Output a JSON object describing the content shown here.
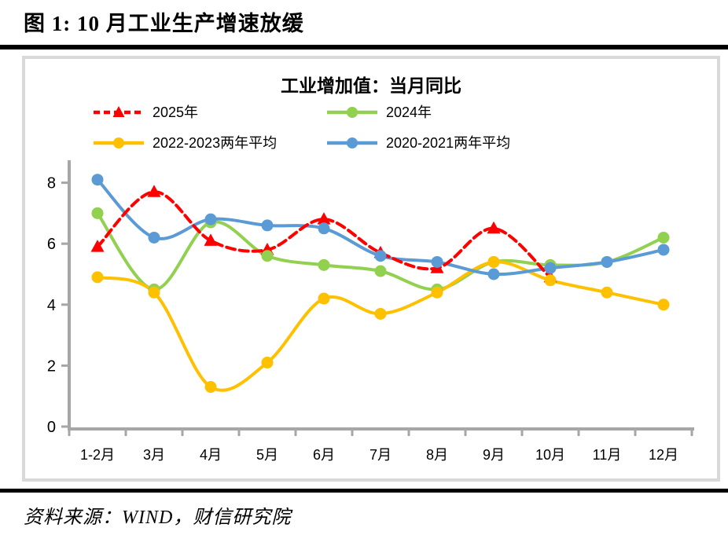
{
  "header": {
    "title": "图 1: 10 月工业生产增速放缓"
  },
  "footer": {
    "source": "资料来源：WIND，财信研究院"
  },
  "chart_data": {
    "type": "line",
    "title": "工业增加值：当月同比",
    "categories": [
      "1-2月",
      "3月",
      "4月",
      "5月",
      "6月",
      "7月",
      "8月",
      "9月",
      "10月",
      "11月",
      "12月"
    ],
    "series": [
      {
        "name": "2025年",
        "color": "#FF0000",
        "dash": true,
        "marker": "triangle",
        "values": [
          5.9,
          7.7,
          6.1,
          5.8,
          6.8,
          5.7,
          5.2,
          6.5,
          4.9,
          null,
          null
        ]
      },
      {
        "name": "2024年",
        "color": "#92D050",
        "dash": false,
        "marker": "circle",
        "values": [
          7.0,
          4.5,
          6.7,
          5.6,
          5.3,
          5.1,
          4.5,
          5.4,
          5.3,
          5.4,
          6.2
        ]
      },
      {
        "name": "2022-2023两年平均",
        "color": "#FFC000",
        "dash": false,
        "marker": "circle",
        "values": [
          4.9,
          4.4,
          1.3,
          2.1,
          4.2,
          3.7,
          4.4,
          5.4,
          4.8,
          4.4,
          4.0
        ]
      },
      {
        "name": "2020-2021两年平均",
        "color": "#5B9BD5",
        "dash": false,
        "marker": "circle",
        "values": [
          8.1,
          6.2,
          6.8,
          6.6,
          6.5,
          5.6,
          5.4,
          5.0,
          5.2,
          5.4,
          5.8
        ]
      }
    ],
    "yticks": [
      0,
      2,
      4,
      6,
      8
    ],
    "ylim": [
      0,
      8.7
    ],
    "xlabel": "",
    "ylabel": "",
    "grid": false,
    "legend_position": "top",
    "axis_color": "#A6A6A6",
    "panel_border_color": "#D9D9D9",
    "text_color": "#000000"
  }
}
